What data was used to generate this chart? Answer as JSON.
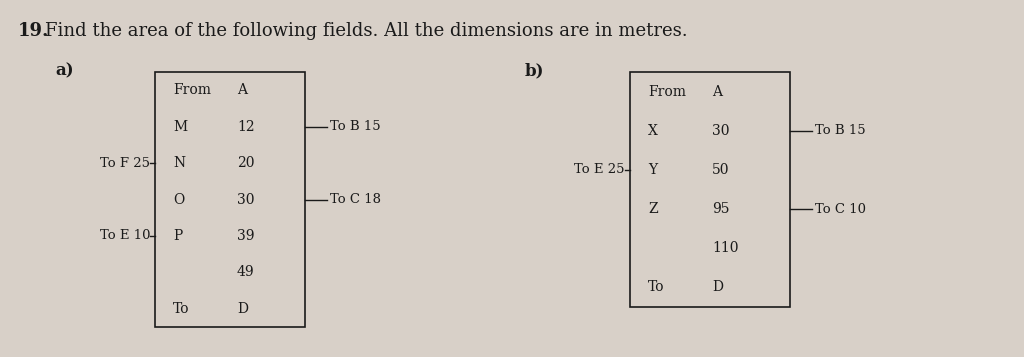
{
  "title": "19. Find the area of the following fields. All the dimensions are in metres.",
  "title_number": "19.",
  "title_text": "Find the area of the following fields. All the dimensions are in metres.",
  "bg_color": "#d8d0c8",
  "text_color": "#1a1a1a",
  "label_a": "a)",
  "label_b": "b)",
  "table_a": {
    "header": [
      "From",
      "A"
    ],
    "rows": [
      [
        "M",
        "12"
      ],
      [
        "N",
        "20"
      ],
      [
        "O",
        "30"
      ],
      [
        "P",
        "39"
      ],
      [
        "",
        "49"
      ],
      [
        "To",
        "D"
      ]
    ],
    "left_annotations": [
      {
        "text": "To F 25",
        "row": 1
      },
      {
        "text": "To E 10",
        "row": 3
      }
    ],
    "right_annotations": [
      {
        "text": "To B 15",
        "row": 0
      },
      {
        "text": "To C 18",
        "row": 2
      }
    ]
  },
  "table_b": {
    "header": [
      "From",
      "A"
    ],
    "rows": [
      [
        "X",
        "30"
      ],
      [
        "Y",
        "50"
      ],
      [
        "Z",
        "95"
      ],
      [
        "",
        "110"
      ],
      [
        "To",
        "D"
      ]
    ],
    "left_annotations": [
      {
        "text": "To E 25",
        "row": 1
      }
    ],
    "right_annotations": [
      {
        "text": "To B 15",
        "row": 0
      },
      {
        "text": "To C 10",
        "row": 2
      }
    ]
  }
}
